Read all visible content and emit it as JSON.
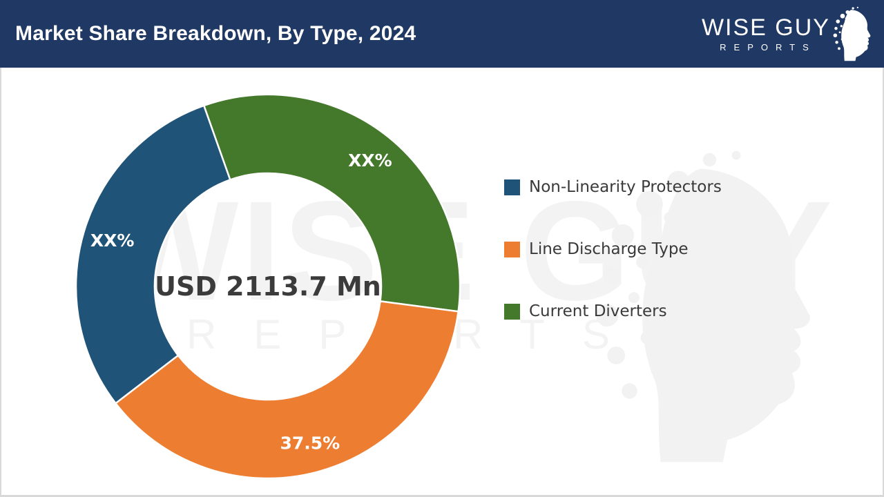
{
  "header": {
    "title": "Market Share Breakdown, By Type, 2024",
    "bg_color": "#203864",
    "logo": {
      "line1": "WISE GUY",
      "line2": "REPORTS"
    }
  },
  "watermark": {
    "line1": "WISE GUY",
    "line2": "REPORTS"
  },
  "chart_data": {
    "type": "pie",
    "variant": "donut",
    "title": "Market Share Breakdown, By Type, 2024",
    "center_label": "USD 2113.7 Mn",
    "start_angle_deg": -19.5,
    "direction": "clockwise",
    "inner_radius_ratio": 0.59,
    "segments": [
      {
        "name": "Current Diverters",
        "value_pct": 32.5,
        "label": "XX%",
        "color": "#44782A"
      },
      {
        "name": "Line Discharge Type",
        "value_pct": 37.5,
        "label": "37.5%",
        "color": "#ED7D31"
      },
      {
        "name": "Non-Linearity Protectors",
        "value_pct": 30.0,
        "label": "XX%",
        "color": "#1F5377"
      }
    ],
    "legend": [
      {
        "label": "Non-Linearity Protectors",
        "color": "#1F5377"
      },
      {
        "label": "Line Discharge Type",
        "color": "#ED7D31"
      },
      {
        "label": "Current Diverters",
        "color": "#44782A"
      }
    ],
    "legend_position": "right"
  }
}
